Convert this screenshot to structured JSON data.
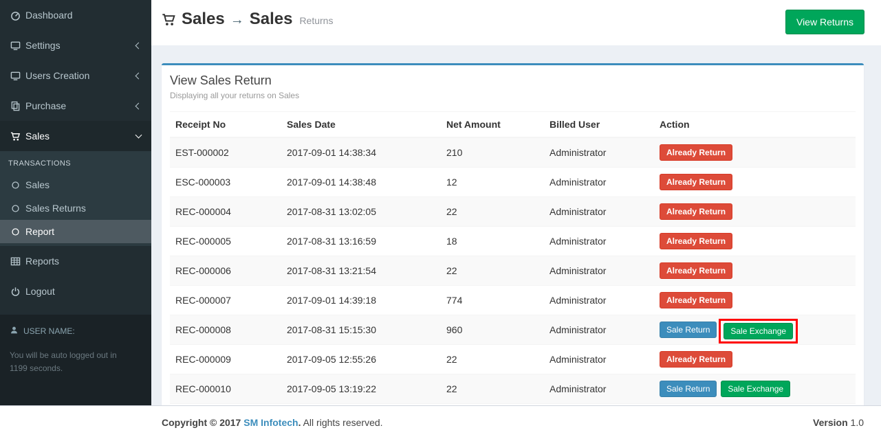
{
  "sidebar": {
    "items": [
      {
        "label": "Dashboard"
      },
      {
        "label": "Settings"
      },
      {
        "label": "Users Creation"
      },
      {
        "label": "Purchase"
      },
      {
        "label": "Sales"
      },
      {
        "label": "Reports"
      },
      {
        "label": "Logout"
      }
    ],
    "transactions_header": "TRANSACTIONS",
    "submenu": [
      {
        "label": "Sales"
      },
      {
        "label": "Sales Returns"
      },
      {
        "label": "Report"
      }
    ],
    "user_label": "USER NAME:",
    "logout_notice": "You will be auto logged out in 1199 seconds."
  },
  "header": {
    "title_primary": "Sales",
    "title_arrow": "→",
    "title_secondary": "Sales",
    "title_small": "Returns",
    "view_returns_button": "View Returns"
  },
  "panel": {
    "title": "View Sales Return",
    "subtitle": "Displaying all your returns on Sales"
  },
  "table": {
    "columns": [
      "Receipt No",
      "Sales Date",
      "Net Amount",
      "Billed User",
      "Action"
    ],
    "rows": [
      {
        "cells": [
          "EST-000002",
          "2017-09-01 14:38:34",
          "210",
          "Administrator"
        ],
        "actions": [
          {
            "label": "Already Return",
            "style": "danger"
          }
        ]
      },
      {
        "cells": [
          "ESC-000003",
          "2017-09-01 14:38:48",
          "12",
          "Administrator"
        ],
        "actions": [
          {
            "label": "Already Return",
            "style": "danger"
          }
        ]
      },
      {
        "cells": [
          "REC-000004",
          "2017-08-31 13:02:05",
          "22",
          "Administrator"
        ],
        "actions": [
          {
            "label": "Already Return",
            "style": "danger"
          }
        ]
      },
      {
        "cells": [
          "REC-000005",
          "2017-08-31 13:16:59",
          "18",
          "Administrator"
        ],
        "actions": [
          {
            "label": "Already Return",
            "style": "danger"
          }
        ]
      },
      {
        "cells": [
          "REC-000006",
          "2017-08-31 13:21:54",
          "22",
          "Administrator"
        ],
        "actions": [
          {
            "label": "Already Return",
            "style": "danger"
          }
        ]
      },
      {
        "cells": [
          "REC-000007",
          "2017-09-01 14:39:18",
          "774",
          "Administrator"
        ],
        "actions": [
          {
            "label": "Already Return",
            "style": "danger"
          }
        ]
      },
      {
        "cells": [
          "REC-000008",
          "2017-08-31 15:15:30",
          "960",
          "Administrator"
        ],
        "actions": [
          {
            "label": "Sale Return",
            "style": "primary"
          },
          {
            "label": "Sale Exchange",
            "style": "success",
            "highlighted": true
          }
        ]
      },
      {
        "cells": [
          "REC-000009",
          "2017-09-05 12:55:26",
          "22",
          "Administrator"
        ],
        "actions": [
          {
            "label": "Already Return",
            "style": "danger"
          }
        ]
      },
      {
        "cells": [
          "REC-000010",
          "2017-09-05 13:19:22",
          "22",
          "Administrator"
        ],
        "actions": [
          {
            "label": "Sale Return",
            "style": "primary"
          },
          {
            "label": "Sale Exchange",
            "style": "success"
          }
        ]
      }
    ]
  },
  "footer": {
    "copyright_bold": "Copyright © 2017",
    "company": "SM Infotech",
    "after_company": ".",
    "rights": "All rights reserved.",
    "version_label": "Version",
    "version_value": "1.0"
  },
  "colors": {
    "topbar": "#00acd6",
    "card_accent": "#3c8dbc",
    "success": "#00a65a",
    "danger": "#dd4b39",
    "primary": "#3c8dbc",
    "sidebar_bg": "#222d32",
    "annotation": "#ff0000"
  }
}
